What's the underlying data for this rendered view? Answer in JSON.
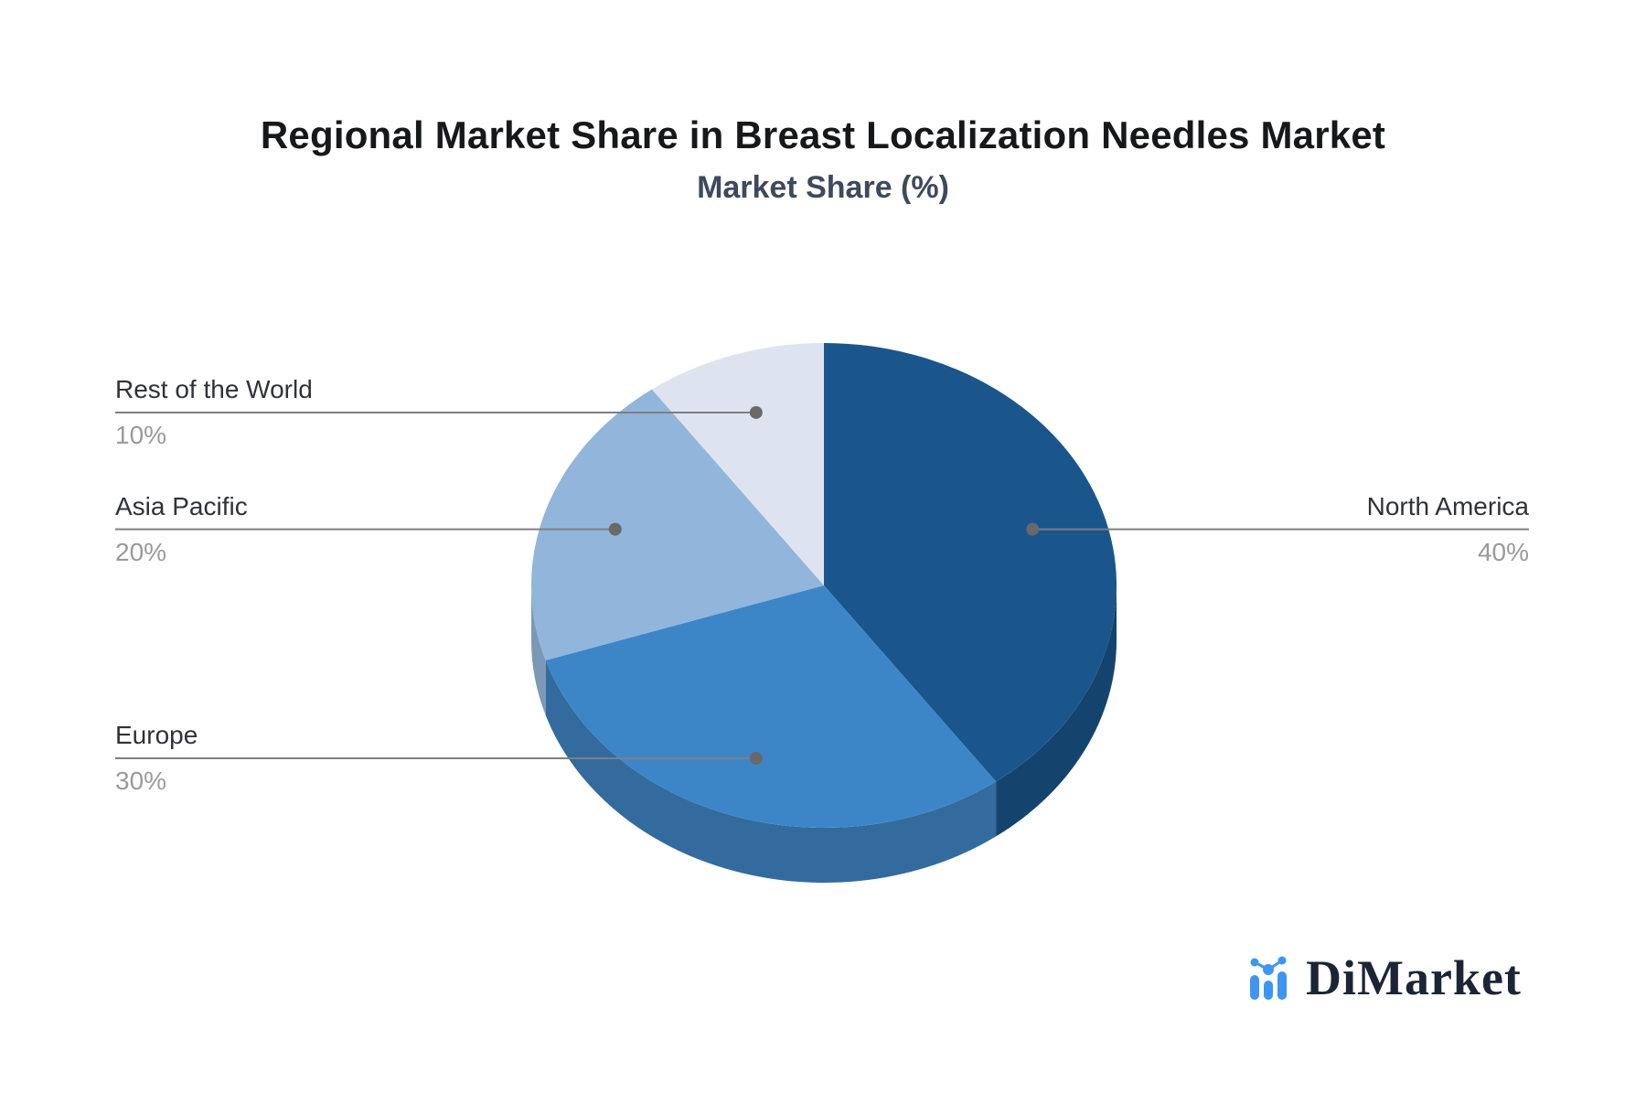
{
  "title": "Regional Market Share in Breast Localization Needles Market",
  "subtitle": "Market Share (%)",
  "brand": {
    "name": "DiMarket",
    "icon": "bar-line-chart-icon",
    "icon_color": "#3e96f2",
    "text_color": "#1b2536"
  },
  "chart_data": {
    "type": "pie",
    "effect": "3d",
    "unit": "%",
    "title": "Regional Market Share in Breast Localization Needles Market",
    "subtitle": "Market Share (%)",
    "direction": "clockwise",
    "start_angle_deg": 0,
    "legend_position": "connector-labels",
    "connector_color": "#7f7f7f",
    "label_color": "#2f3237",
    "value_color": "#9a9a9a",
    "segments": [
      {
        "label": "North America",
        "value": 40,
        "color": "#1a568c",
        "side_color": "#14436e",
        "label_side": "right"
      },
      {
        "label": "Europe",
        "value": 30,
        "color": "#3c86c8",
        "side_color": "#336b9e",
        "label_side": "left"
      },
      {
        "label": "Asia Pacific",
        "value": 20,
        "color": "#91b5db",
        "side_color": "#7d98b6",
        "label_side": "left"
      },
      {
        "label": "Rest of the World",
        "value": 10,
        "color": "#dee4ef",
        "side_color": "#b9c5d8",
        "label_side": "left"
      }
    ]
  }
}
